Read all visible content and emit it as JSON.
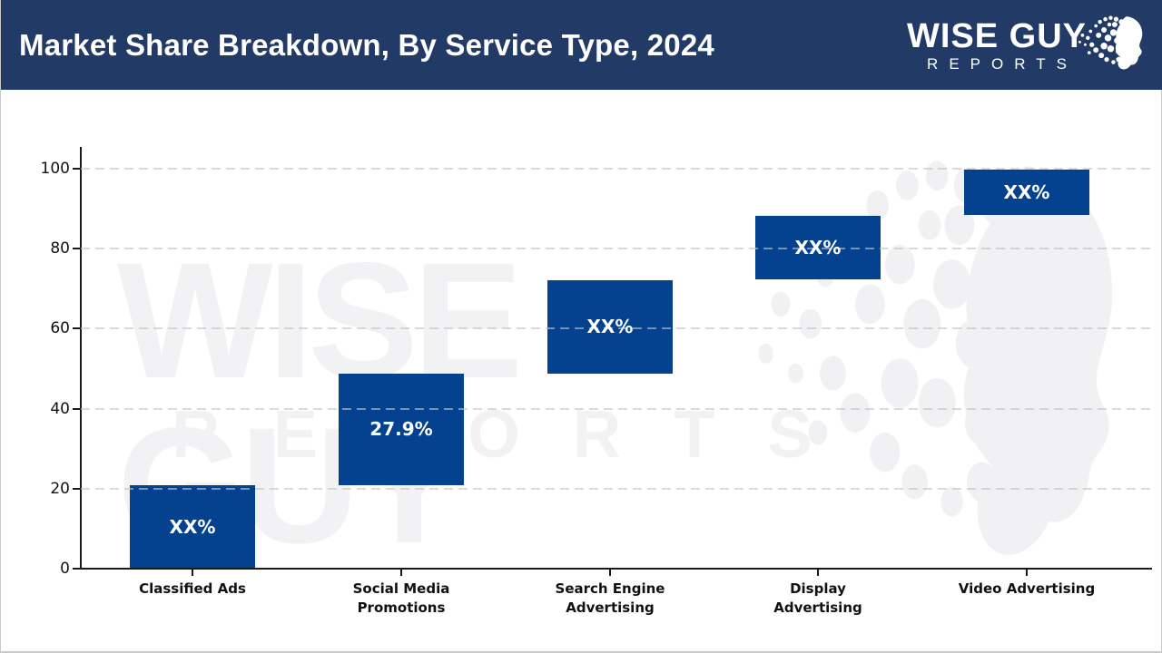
{
  "header": {
    "title": "Market Share Breakdown, By Service Type, 2024",
    "logo": {
      "name": "WISE GUY",
      "sub": "REPORTS"
    }
  },
  "watermark": {
    "line1": "WISE GUY",
    "line2": "REPORTS"
  },
  "colors": {
    "header_bg": "#213a66",
    "bar": "#04418f",
    "grid": "#dcdcdc",
    "axis": "#1a1a1a",
    "value_label": "#ffffff",
    "watermark": "#f2f2f4"
  },
  "chart_data": {
    "type": "bar",
    "subtype": "waterfall",
    "title": "Market Share Breakdown, By Service Type, 2024",
    "xlabel": "",
    "ylabel": "",
    "categories": [
      "Classified Ads",
      "Social Media\nPromotions",
      "Search Engine\nAdvertising",
      "Display\nAdvertising",
      "Video Advertising"
    ],
    "segments": [
      {
        "category": "Classified Ads",
        "start": 0,
        "end": 20.9,
        "label": "XX%"
      },
      {
        "category": "Social Media Promotions",
        "start": 20.9,
        "end": 48.8,
        "label": "27.9%"
      },
      {
        "category": "Search Engine Advertising",
        "start": 48.8,
        "end": 72.1,
        "label": "XX%"
      },
      {
        "category": "Display Advertising",
        "start": 72.3,
        "end": 88.2,
        "label": "XX%"
      },
      {
        "category": "Video Advertising",
        "start": 88.4,
        "end": 99.8,
        "label": "XX%"
      }
    ],
    "yticks": [
      0,
      20,
      40,
      60,
      80,
      100
    ],
    "ylim": [
      0,
      105
    ],
    "grid": "horizontal-dashed",
    "legend": "none",
    "bar_color": "#04418f",
    "value_label_color": "#ffffff"
  }
}
